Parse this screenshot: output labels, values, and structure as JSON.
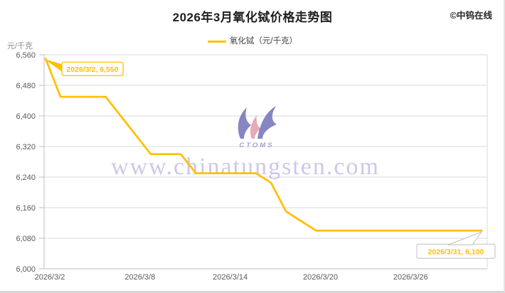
{
  "header": {
    "title": "2026年3月氧化铽价格走势图"
  },
  "meta": {
    "copyright": "©中钨在线"
  },
  "legend": {
    "label": "氧化铽（元/千克）",
    "line_color": "#FFC000"
  },
  "watermark": {
    "url_text": "www.chinatungsten.com",
    "logo_text": "CTOMS"
  },
  "chart_data": {
    "type": "line",
    "title": "2026年3月氧化铽价格走势图",
    "series_name": "氧化铽（元/千克）",
    "ylabel": "元/千克",
    "xlabel": "",
    "grid": true,
    "legend_position": "top",
    "line_color": "#FFC000",
    "grid_color": "#D9D9D9",
    "axis_color": "#BFBFBF",
    "tick_text_color": "#595959",
    "ylim": [
      6000,
      6560
    ],
    "ytick_interval": 80,
    "xticks": [
      "2026/3/2",
      "2026/3/8",
      "2026/3/14",
      "2026/3/20",
      "2026/3/26"
    ],
    "x": [
      "2026/3/2",
      "2026/3/3",
      "2026/3/4",
      "2026/3/5",
      "2026/3/6",
      "2026/3/7",
      "2026/3/8",
      "2026/3/9",
      "2026/3/10",
      "2026/3/11",
      "2026/3/12",
      "2026/3/13",
      "2026/3/14",
      "2026/3/15",
      "2026/3/16",
      "2026/3/17",
      "2026/3/18",
      "2026/3/19",
      "2026/3/20",
      "2026/3/21",
      "2026/3/22",
      "2026/3/23",
      "2026/3/24",
      "2026/3/25",
      "2026/3/26",
      "2026/3/27",
      "2026/3/28",
      "2026/3/29",
      "2026/3/30",
      "2026/3/31"
    ],
    "values": [
      6550,
      6450,
      6450,
      6450,
      6450,
      6400,
      6350,
      6300,
      6300,
      6300,
      6250,
      6250,
      6250,
      6250,
      6250,
      6225,
      6150,
      6125,
      6100,
      6100,
      6100,
      6100,
      6100,
      6100,
      6100,
      6100,
      6100,
      6100,
      6100,
      6100
    ],
    "annotations": [
      {
        "label": "2026/3/2, 6,550",
        "x": "2026/3/2",
        "y": 6550,
        "placement": "right-below",
        "border_color": "#FFC000",
        "text_color": "#FFC000",
        "callout_fill": "#FFC000"
      },
      {
        "label": "2026/3/31, 6,100",
        "x": "2026/3/31",
        "y": 6100,
        "placement": "below-left",
        "border_color": "#BFBFBF",
        "text_color": "#FFC000",
        "callout_fill": "#FFFFFF"
      }
    ]
  }
}
